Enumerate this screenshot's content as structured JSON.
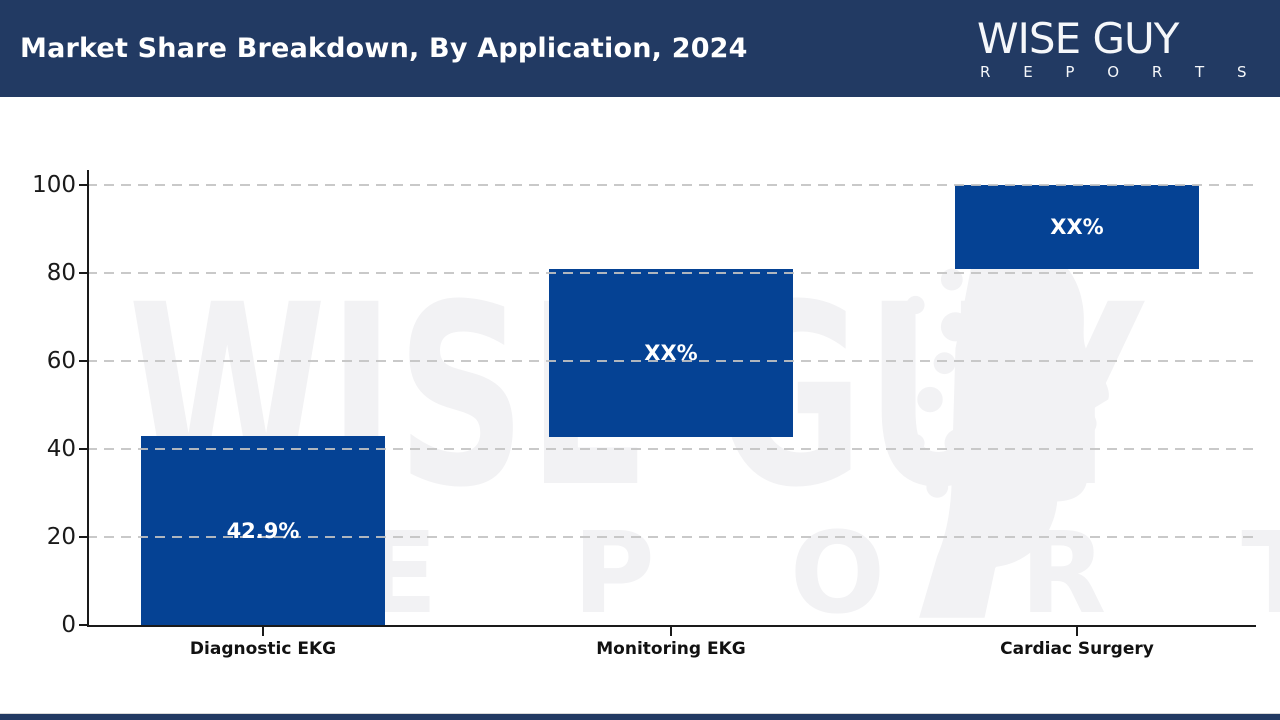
{
  "header": {
    "title": "Market Share Breakdown, By Application, 2024",
    "logo": {
      "line1": "WISE GUY",
      "line2": "R E P O R T S"
    }
  },
  "watermark": {
    "line1": "WISE GUY",
    "line2": "R E P O R T S"
  },
  "chart_data": {
    "type": "bar",
    "variant": "floating-segment-waterfall",
    "title": "Market Share Breakdown, By Application, 2024",
    "categories": [
      "Diagnostic EKG",
      "Monitoring EKG",
      "Cardiac Surgery"
    ],
    "segments": [
      {
        "category": "Diagnostic EKG",
        "start": 0,
        "end": 42.9,
        "label": "42.9%"
      },
      {
        "category": "Monitoring EKG",
        "start": 42.9,
        "end": 81,
        "label": "XX%"
      },
      {
        "category": "Cardiac Surgery",
        "start": 81,
        "end": 100,
        "label": "XX%"
      }
    ],
    "yticks": [
      0,
      20,
      40,
      60,
      80,
      100
    ],
    "ylim": [
      0,
      100
    ],
    "grid": "dashed horizontal, drawn over bars",
    "legend": "none",
    "bar_color": "#054294",
    "label_color": "#ffffff"
  },
  "colors": {
    "header_bg": "#223a63",
    "footer_bg": "#223a63",
    "bar": "#054294",
    "gridline": "#c3c3c3",
    "axis": "#1a1a1a",
    "watermark": "#f2f2f4",
    "background": "#ffffff"
  }
}
